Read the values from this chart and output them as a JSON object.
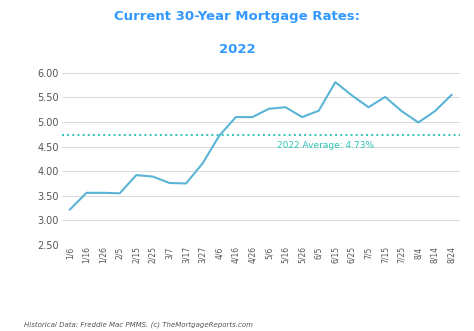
{
  "title_line1": "Current 30-Year Mortgage Rates:",
  "title_line2": "2022",
  "title_color": "#3399ff",
  "line_color": "#5ab4d6",
  "avg_line_color": "#2ec4b6",
  "avg_value": 4.73,
  "avg_label": "2022 Average: 4.73%",
  "footer": "Historical Data: Freddie Mac PMMS. (c) TheMortgageReports.com",
  "ylim": [
    2.5,
    6.0
  ],
  "yticks": [
    2.5,
    3.0,
    3.5,
    4.0,
    4.5,
    5.0,
    5.5,
    6.0
  ],
  "x_labels": [
    "1/6",
    "1/16",
    "1/26",
    "2/5",
    "2/15",
    "2/25",
    "3/7",
    "3/17",
    "3/27",
    "4/6",
    "4/16",
    "4/26",
    "5/6",
    "5/16",
    "5/26",
    "6/5",
    "6/15",
    "6/25",
    "7/5",
    "7/15",
    "7/25",
    "8/4",
    "8/14",
    "8/24"
  ],
  "values": [
    3.22,
    3.56,
    3.56,
    3.55,
    3.92,
    3.89,
    3.76,
    3.75,
    4.16,
    4.72,
    5.1,
    5.1,
    5.27,
    5.3,
    5.1,
    5.23,
    5.81,
    5.54,
    5.3,
    5.51,
    5.22,
    4.99,
    5.22,
    5.55
  ],
  "background_color": "#ffffff",
  "grid_color": "#cccccc",
  "tick_label_color": "#555555"
}
